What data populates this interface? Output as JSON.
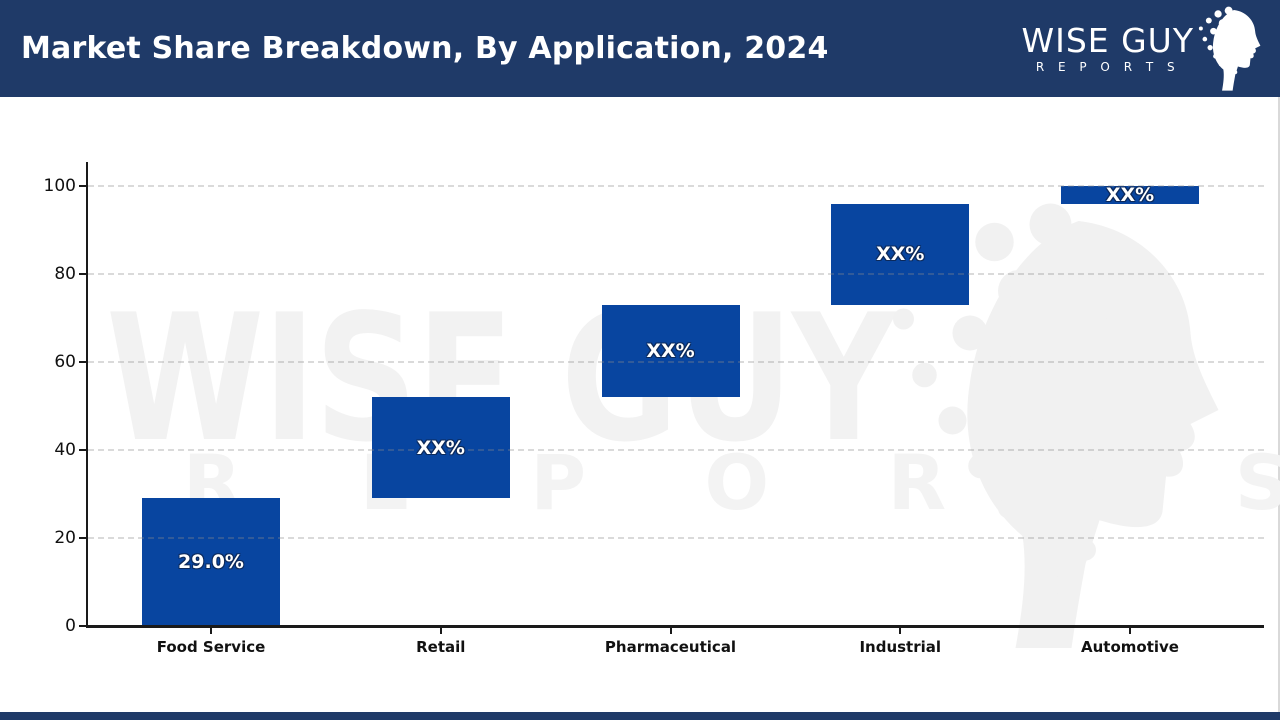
{
  "header": {
    "title": "Market Share Breakdown, By Application, 2024",
    "brand": {
      "wordmark": "WISE GUY",
      "tagline": "R E P O R T S"
    }
  },
  "watermark": {
    "wordmark": "WISE GUY",
    "tagline": "R E P O R T S"
  },
  "chart_data": {
    "type": "bar",
    "subtype": "waterfall",
    "title": "Market Share Breakdown, By Application, 2024",
    "categories": [
      "Food Service",
      "Retail",
      "Pharmaceutical",
      "Industrial",
      "Automotive"
    ],
    "segments": [
      {
        "category": "Food Service",
        "start": 0,
        "end": 29,
        "label": "29.0%"
      },
      {
        "category": "Retail",
        "start": 29,
        "end": 52,
        "label": "XX%"
      },
      {
        "category": "Pharmaceutical",
        "start": 52,
        "end": 73,
        "label": "XX%"
      },
      {
        "category": "Industrial",
        "start": 73,
        "end": 96,
        "label": "XX%"
      },
      {
        "category": "Automotive",
        "start": 96,
        "end": 100,
        "label": "XX%"
      }
    ],
    "yticks": [
      0,
      20,
      40,
      60,
      80,
      100
    ],
    "ylim": [
      0,
      105
    ],
    "xlabel": "",
    "ylabel": "",
    "grid": {
      "axis": "y",
      "style": "dashed"
    },
    "legend": "none",
    "bar_color": "#0845a0",
    "bar_label_color": "#ffffff"
  },
  "colors": {
    "header_bg": "#1f3a68",
    "footer_bg": "#1f3a68",
    "axis": "#1a1a1a",
    "tick_label": "#111111",
    "watermark": "#f1f1f1"
  }
}
